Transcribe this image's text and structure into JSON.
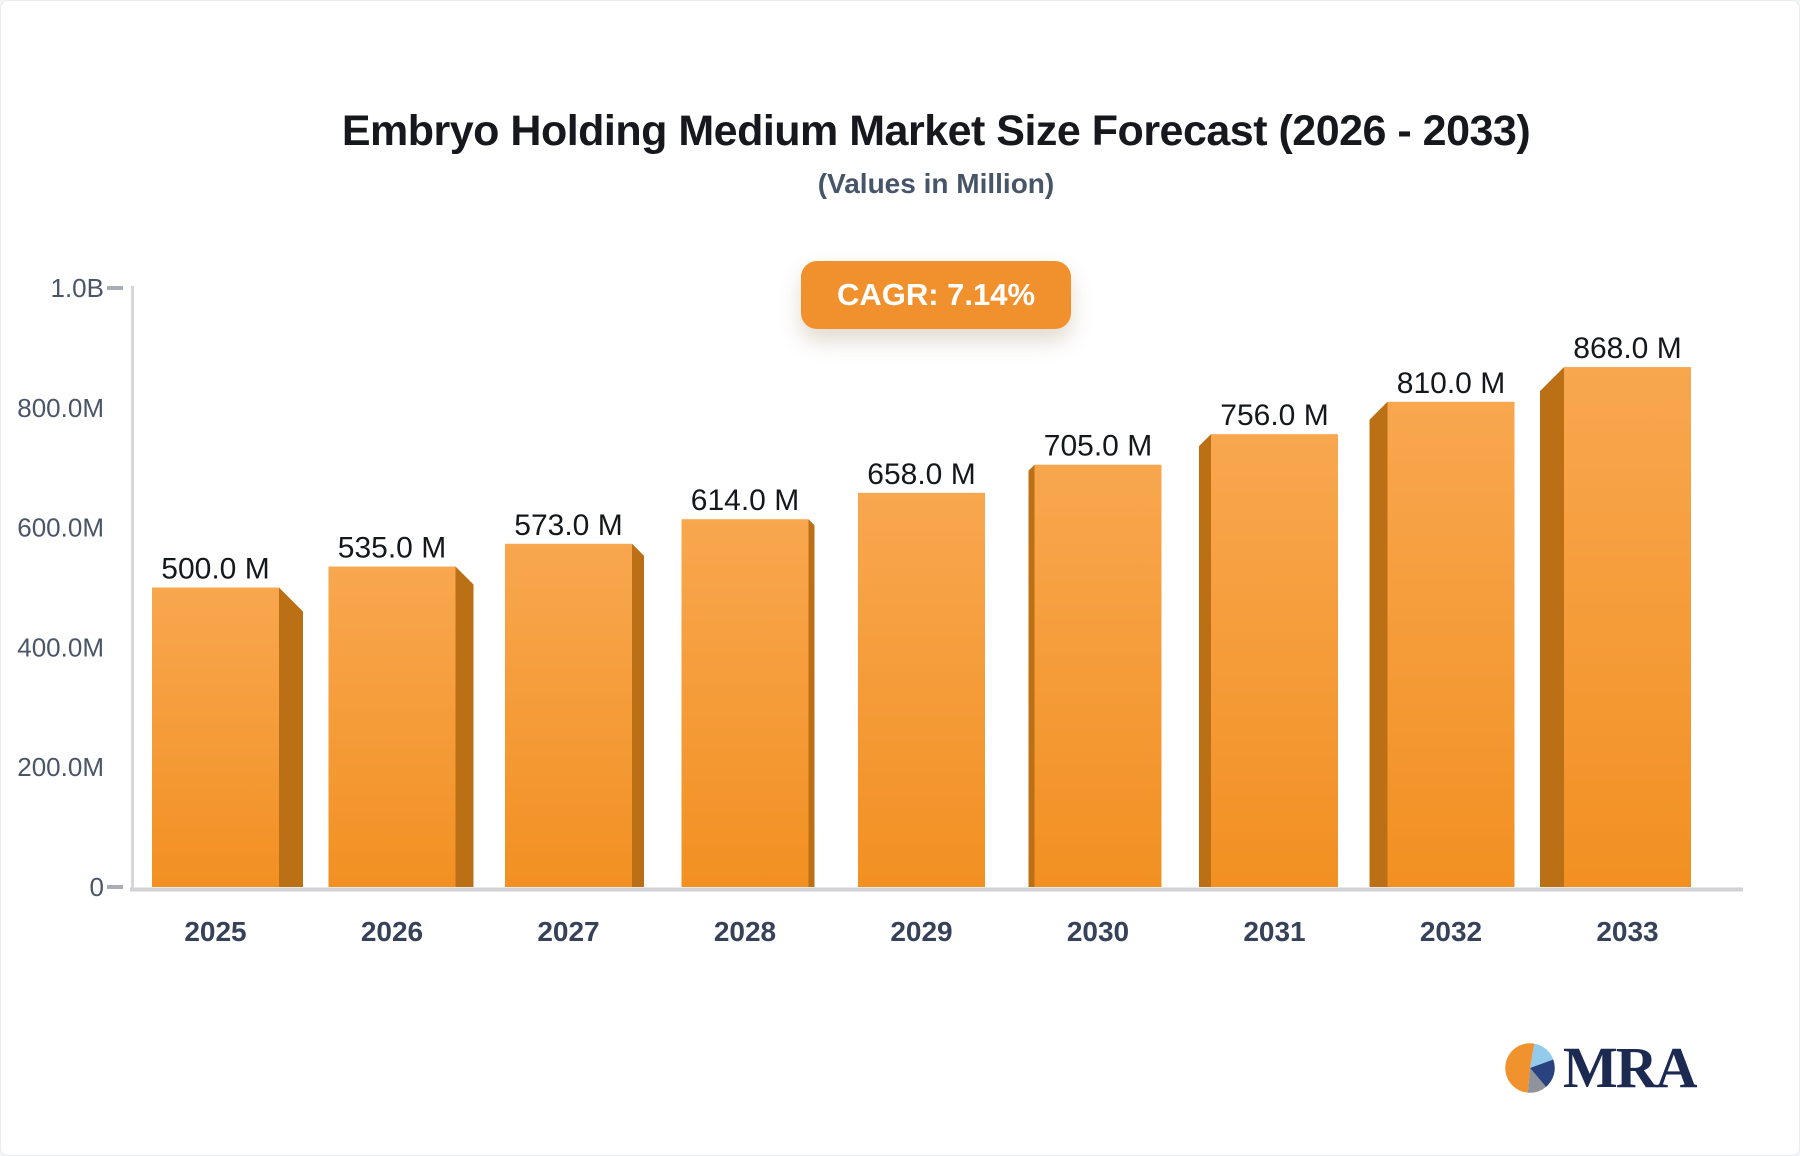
{
  "chart_data": {
    "type": "bar",
    "title": "Embryo Holding Medium Market Size Forecast (2026 - 2033)",
    "subtitle": "(Values in Million)",
    "cagr_label": "CAGR: 7.14%",
    "categories": [
      "2025",
      "2026",
      "2027",
      "2028",
      "2029",
      "2030",
      "2031",
      "2032",
      "2033"
    ],
    "values": [
      500,
      535,
      573,
      614,
      658,
      705,
      756,
      810,
      868
    ],
    "value_labels": [
      "500.0 M",
      "535.0 M",
      "573.0 M",
      "614.0 M",
      "658.0 M",
      "705.0 M",
      "756.0 M",
      "810.0 M",
      "868.0 M"
    ],
    "xlabel": "",
    "ylabel": "",
    "ylim": [
      0,
      1000
    ],
    "yticks": [
      {
        "label": "0",
        "value": 0,
        "dash": true
      },
      {
        "label": "200.0M",
        "value": 200,
        "dash": false
      },
      {
        "label": "400.0M",
        "value": 400,
        "dash": false
      },
      {
        "label": "600.0M",
        "value": 600,
        "dash": false
      },
      {
        "label": "800.0M",
        "value": 800,
        "dash": false
      },
      {
        "label": "1.0B",
        "value": 1000,
        "dash": true
      }
    ],
    "grid": false,
    "legend": "none",
    "style": "3d-perspective-bars, center vanishing point",
    "colors": {
      "bar_top": "#F8A74F",
      "bar_bottom": "#F29022",
      "bar_side": "#BC7016",
      "axis_line": "#D7D7DB",
      "baseline": "#D2D2D6",
      "tick_dash": "#A9ADB5",
      "ylabel_text": "#4A5568",
      "xlabel_text": "#36415A",
      "value_label_text": "#15181B",
      "badge_bg": "#F1912D",
      "badge_text": "#FFFFFF",
      "title_text": "#16181D",
      "subtitle_text": "#475569"
    }
  },
  "logo": {
    "text": "MRA",
    "text_color": "#1C2A52",
    "pie_slices": [
      {
        "name": "light-blue",
        "color": "#93CBEC",
        "start_deg": 80,
        "sweep_deg": 60
      },
      {
        "name": "navy",
        "color": "#28437F",
        "start_deg": 20,
        "sweep_deg": 70
      },
      {
        "name": "gray",
        "color": "#90939B",
        "start_deg": -50,
        "sweep_deg": 45
      },
      {
        "name": "orange",
        "color": "#F0932E",
        "start_deg": -95,
        "sweep_deg": 185
      }
    ]
  }
}
